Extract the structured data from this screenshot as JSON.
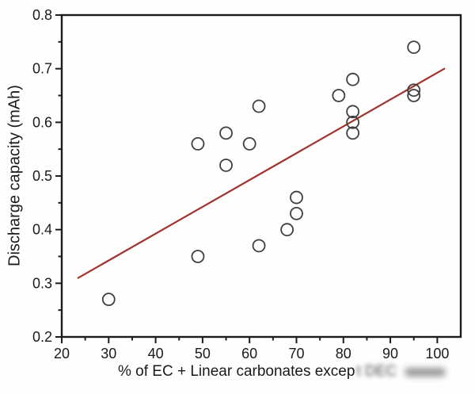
{
  "chart_data": {
    "type": "scatter",
    "title": "",
    "ylabel": "Discharge capacity (mAh)",
    "xlabel_visible": "% of EC + Linear carbonates excep",
    "xlim": [
      20,
      105
    ],
    "ylim": [
      0.2,
      0.8
    ],
    "x_major_ticks": [
      20,
      30,
      40,
      50,
      60,
      70,
      80,
      90,
      100
    ],
    "x_minor_ticks": [
      25,
      35,
      45,
      55,
      65,
      75,
      85,
      95
    ],
    "y_major_ticks": [
      0.2,
      0.3,
      0.4,
      0.5,
      0.6,
      0.7,
      0.8
    ],
    "y_minor_ticks": [
      0.25,
      0.35,
      0.45,
      0.55,
      0.65,
      0.75
    ],
    "grid": false,
    "legend": false,
    "marker_style": "open-circle",
    "marker_color": "#3f3f3f",
    "axis_color": "#1c1c1c",
    "points": [
      {
        "x": 30,
        "y": 0.27
      },
      {
        "x": 49,
        "y": 0.35
      },
      {
        "x": 49,
        "y": 0.56
      },
      {
        "x": 55,
        "y": 0.52
      },
      {
        "x": 55,
        "y": 0.58
      },
      {
        "x": 60,
        "y": 0.56
      },
      {
        "x": 62,
        "y": 0.63
      },
      {
        "x": 62,
        "y": 0.37
      },
      {
        "x": 68,
        "y": 0.4
      },
      {
        "x": 70,
        "y": 0.43
      },
      {
        "x": 70,
        "y": 0.46
      },
      {
        "x": 79,
        "y": 0.65
      },
      {
        "x": 82,
        "y": 0.58
      },
      {
        "x": 82,
        "y": 0.6
      },
      {
        "x": 82,
        "y": 0.62
      },
      {
        "x": 82,
        "y": 0.68
      },
      {
        "x": 95,
        "y": 0.65
      },
      {
        "x": 95,
        "y": 0.66
      },
      {
        "x": 95,
        "y": 0.74
      }
    ],
    "trend_line": {
      "x1": 23.5,
      "y1": 0.31,
      "x2": 101.5,
      "y2": 0.7,
      "color": "#a0342c"
    }
  },
  "watermark": {
    "present": true,
    "obscured_text": "t DEC"
  }
}
